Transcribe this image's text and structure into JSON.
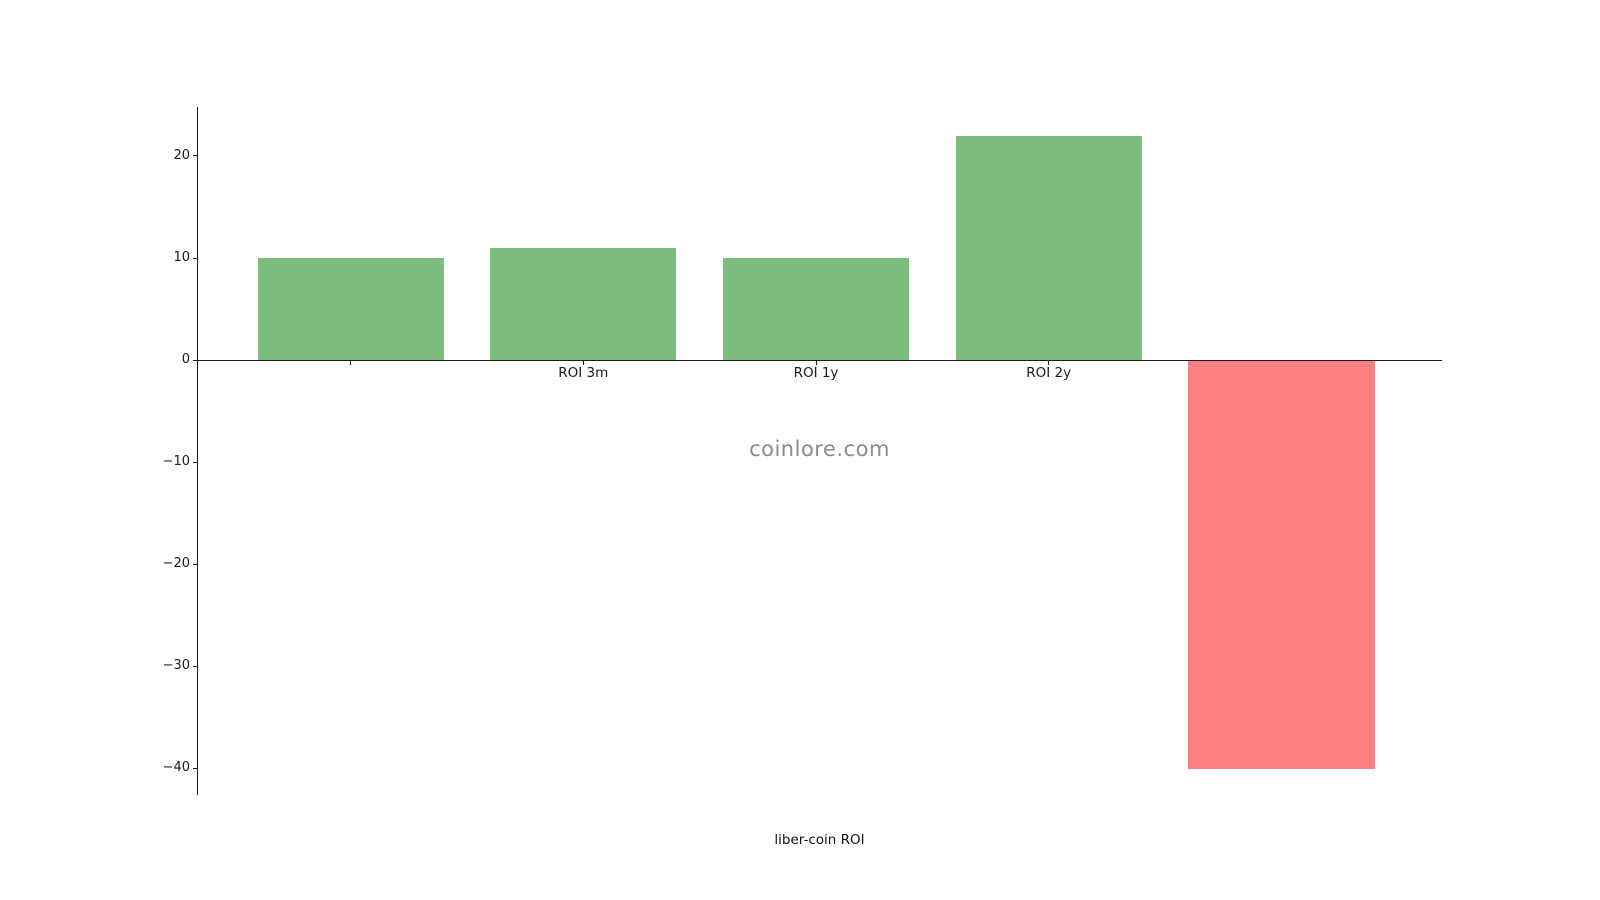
{
  "page": {
    "background": "#ffffff"
  },
  "chart_data": {
    "type": "bar",
    "title": "liber-coin ROI",
    "xlabel": "liber-coin ROI",
    "ylabel": "",
    "watermark": "coinlore.com",
    "categories": [
      "",
      "ROI 3m",
      "ROI 1y",
      "ROI 2y",
      ""
    ],
    "values": [
      10,
      11,
      10,
      22,
      -40
    ],
    "xtick_visible": [
      true,
      true,
      true,
      true,
      false
    ],
    "yticks": [
      20,
      10,
      0,
      -10,
      -20,
      -30,
      -40
    ],
    "ytick_labels": [
      "20",
      "10",
      "0",
      "−10",
      "−20",
      "−30",
      "−40"
    ],
    "ylim": [
      -42.6,
      24.8
    ],
    "xlim": [
      -0.66,
      4.69
    ],
    "bar_width": 0.8,
    "grid": false,
    "legend": false,
    "colors": {
      "positive": "#7dbd7d",
      "negative": "#fe8181",
      "axis": "#1a1a1a",
      "tick_text": "#1a1a1a",
      "watermark": "#8a8a8a"
    }
  }
}
